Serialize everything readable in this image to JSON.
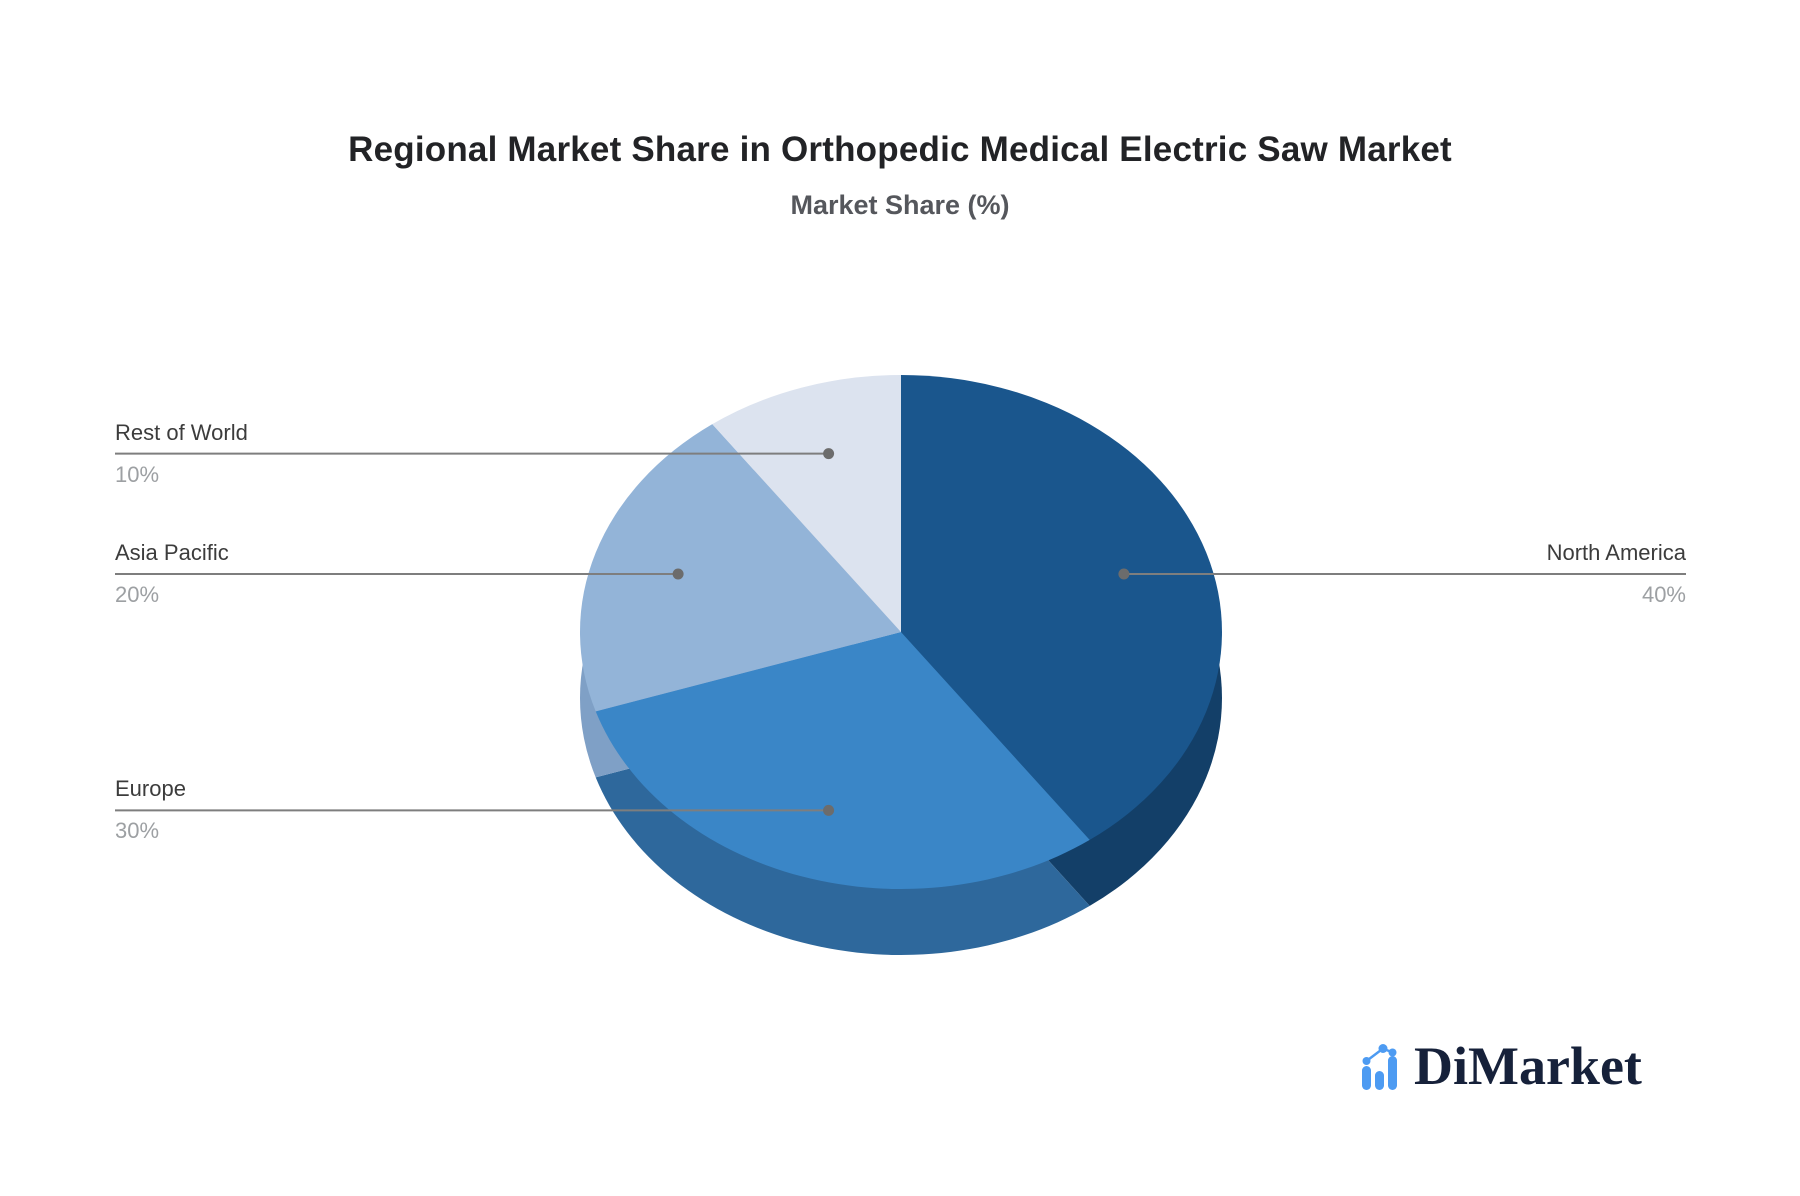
{
  "header": {
    "title": "Regional Market Share in Orthopedic Medical Electric Saw Market",
    "subtitle": "Market Share (%)"
  },
  "chart_data": {
    "type": "pie",
    "style": "3d-pie",
    "title": "Regional Market Share in Orthopedic Medical Electric Saw Market",
    "subtitle": "Market Share (%)",
    "unit": "%",
    "start_angle_deg": 0,
    "direction": "clockwise",
    "legend_position": "callout-labels",
    "slices": [
      {
        "label": "North America",
        "value": 40,
        "display": "40%",
        "color": "#1A568D",
        "side_color": "#133F68",
        "label_side": "right"
      },
      {
        "label": "Europe",
        "value": 30,
        "display": "30%",
        "color": "#3A86C7",
        "side_color": "#2E689C",
        "label_side": "left"
      },
      {
        "label": "Asia Pacific",
        "value": 20,
        "display": "20%",
        "color": "#93B4D8",
        "side_color": "#7FA0C6",
        "label_side": "left"
      },
      {
        "label": "Rest of World",
        "value": 10,
        "display": "10%",
        "color": "#DCE3EF",
        "side_color": "#C5CFDF",
        "label_side": "left"
      }
    ],
    "leader": {
      "line_color": "#7E7E7E",
      "dot_color": "#6C6C6C"
    }
  },
  "logo": {
    "text": "DiMarket",
    "icon": "bar-chart-logo-icon",
    "accent_color": "#4D9BF2",
    "text_color": "#16213A"
  },
  "colors": {
    "background": "#FFFFFF"
  }
}
